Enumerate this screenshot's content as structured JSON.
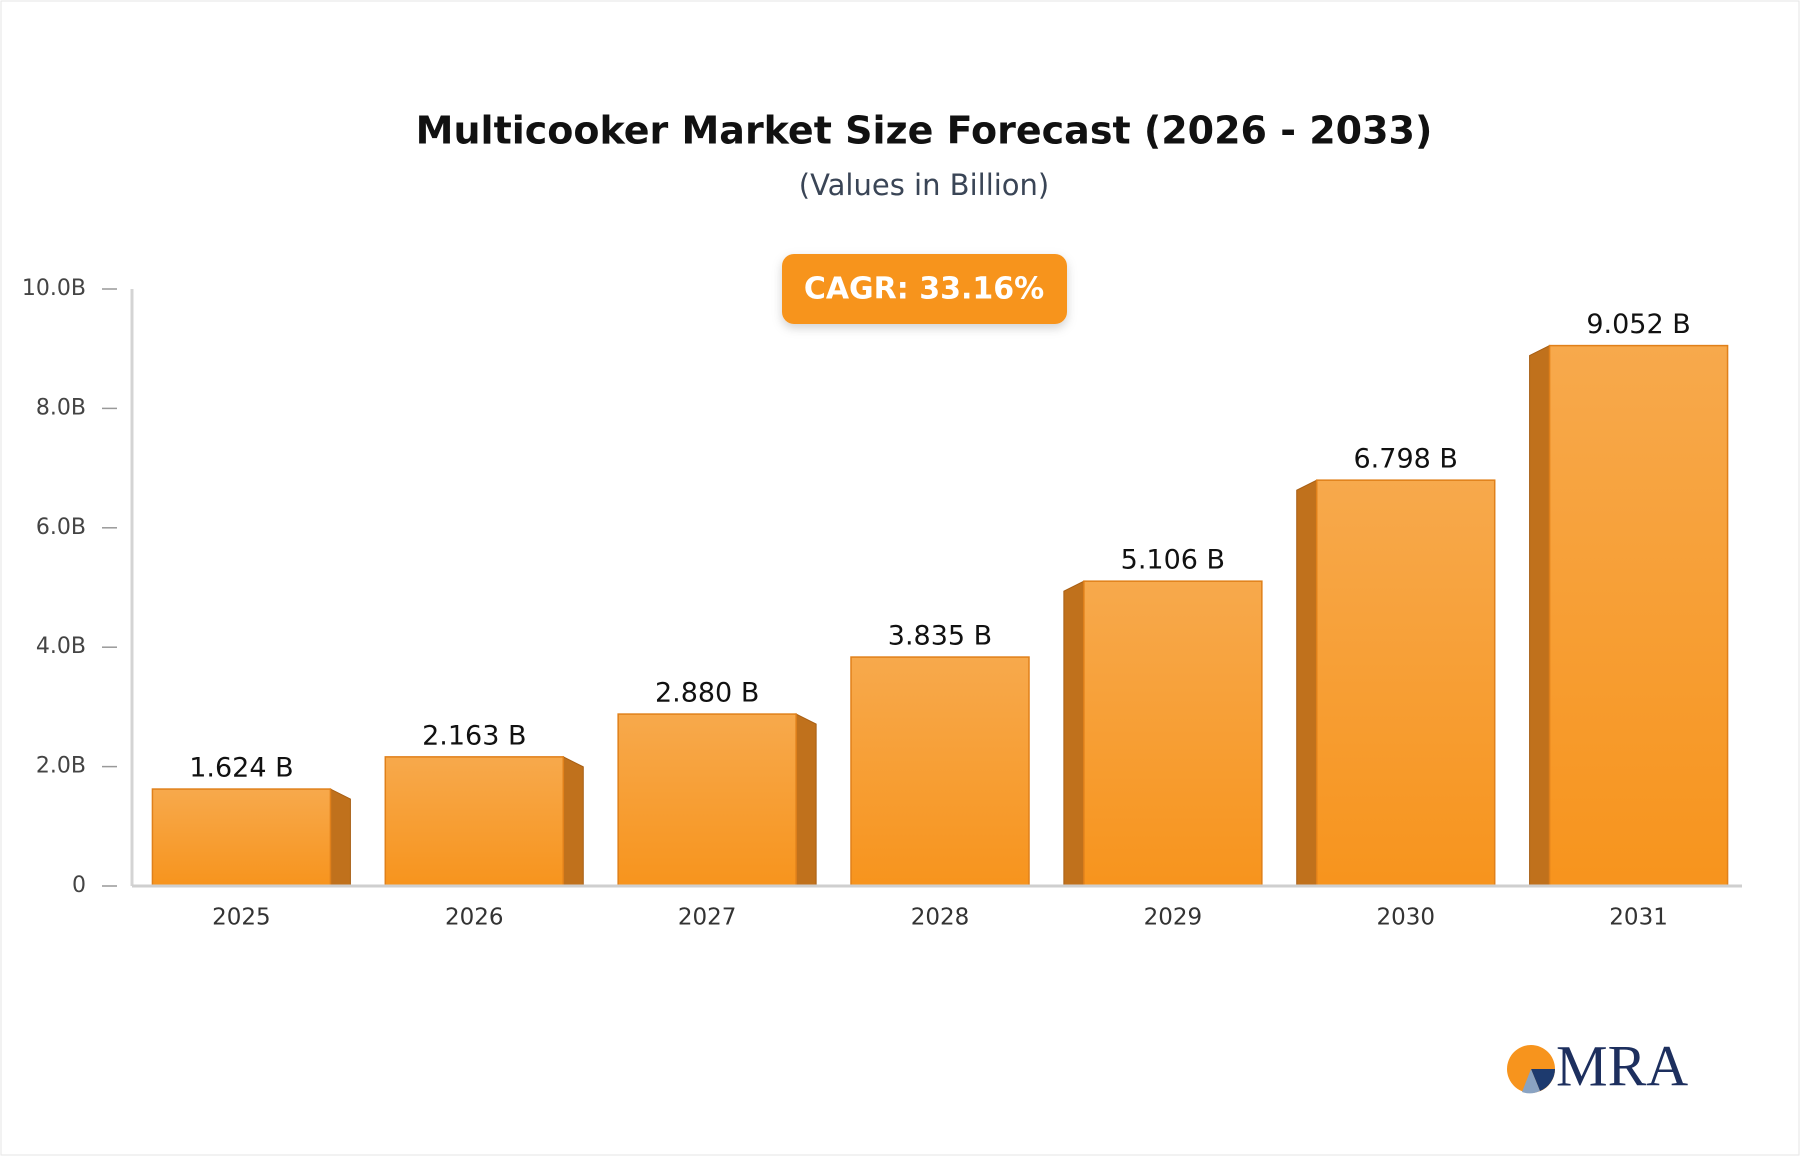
{
  "chart_data": {
    "type": "bar",
    "title": "Multicooker Market Size Forecast (2026 - 2033)",
    "subtitle": "(Values in Billion)",
    "annotation": "CAGR: 33.16%",
    "categories": [
      "2025",
      "2026",
      "2027",
      "2028",
      "2029",
      "2030",
      "2031"
    ],
    "values": [
      1.624,
      2.163,
      2.88,
      3.835,
      5.106,
      6.798,
      9.052
    ],
    "value_labels": [
      "1.624 B",
      "2.163 B",
      "2.880 B",
      "3.835 B",
      "5.106 B",
      "6.798 B",
      "9.052 B"
    ],
    "color": "#f7941d",
    "ylim": [
      0,
      10
    ],
    "yticks": [
      0,
      {
        "value": 2,
        "label": "2.0B"
      },
      {
        "value": 4,
        "label": "4.0B"
      },
      {
        "value": 6,
        "label": "6.0B"
      },
      {
        "value": 8,
        "label": "8.0B"
      },
      {
        "value": 10,
        "label": "10.0B"
      }
    ],
    "grid": false
  },
  "logo": "MRA"
}
